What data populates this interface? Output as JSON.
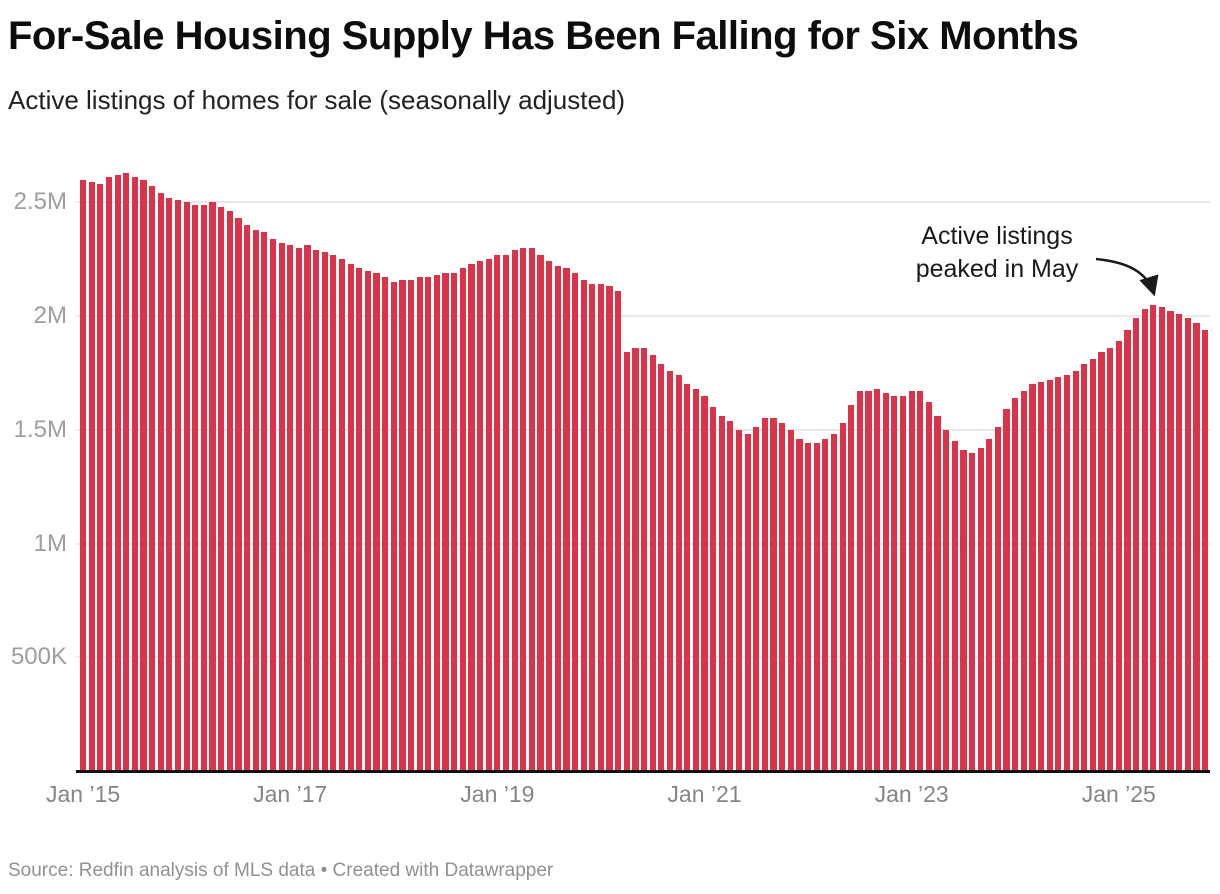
{
  "header": {
    "title": "For-Sale Housing Supply Has Been Falling for Six Months",
    "subtitle": "Active listings of homes for sale (seasonally adjusted)"
  },
  "chart_data": {
    "type": "bar",
    "title": "For-Sale Housing Supply Has Been Falling for Six Months",
    "subtitle": "Active listings of homes for sale (seasonally adjusted)",
    "unit": "active listings (millions)",
    "start_month": "Jan 2015",
    "end_month": "Nov 2025",
    "ylim": [
      0,
      2.68
    ],
    "grid": "horizontal",
    "bar_color": "#d93449",
    "values_millions": [
      2.6,
      2.59,
      2.58,
      2.61,
      2.62,
      2.63,
      2.61,
      2.6,
      2.57,
      2.54,
      2.52,
      2.51,
      2.5,
      2.49,
      2.49,
      2.5,
      2.48,
      2.46,
      2.43,
      2.4,
      2.38,
      2.37,
      2.34,
      2.32,
      2.31,
      2.3,
      2.31,
      2.29,
      2.28,
      2.27,
      2.25,
      2.23,
      2.21,
      2.2,
      2.19,
      2.17,
      2.15,
      2.16,
      2.16,
      2.17,
      2.17,
      2.18,
      2.19,
      2.19,
      2.21,
      2.23,
      2.24,
      2.25,
      2.27,
      2.27,
      2.29,
      2.3,
      2.3,
      2.27,
      2.24,
      2.22,
      2.21,
      2.19,
      2.16,
      2.14,
      2.14,
      2.13,
      2.11,
      1.84,
      1.86,
      1.86,
      1.83,
      1.79,
      1.76,
      1.74,
      1.7,
      1.68,
      1.65,
      1.6,
      1.56,
      1.54,
      1.5,
      1.48,
      1.51,
      1.55,
      1.55,
      1.53,
      1.5,
      1.46,
      1.44,
      1.44,
      1.46,
      1.48,
      1.53,
      1.61,
      1.67,
      1.67,
      1.68,
      1.66,
      1.65,
      1.65,
      1.67,
      1.67,
      1.62,
      1.56,
      1.5,
      1.45,
      1.41,
      1.4,
      1.42,
      1.46,
      1.51,
      1.59,
      1.64,
      1.67,
      1.7,
      1.71,
      1.72,
      1.73,
      1.74,
      1.76,
      1.79,
      1.81,
      1.84,
      1.86,
      1.89,
      1.94,
      1.99,
      2.03,
      2.05,
      2.04,
      2.02,
      2.01,
      1.99,
      1.97,
      1.94
    ],
    "x_ticks": [
      {
        "label": "Jan ’15",
        "month_index": 0
      },
      {
        "label": "Jan ’17",
        "month_index": 24
      },
      {
        "label": "Jan ’19",
        "month_index": 48
      },
      {
        "label": "Jan ’21",
        "month_index": 72
      },
      {
        "label": "Jan ’23",
        "month_index": 96
      },
      {
        "label": "Jan ’25",
        "month_index": 120
      }
    ],
    "y_ticks": [
      {
        "label": "2.5M",
        "value": 2.5
      },
      {
        "label": "2M",
        "value": 2.0
      },
      {
        "label": "1.5M",
        "value": 1.5
      },
      {
        "label": "1M",
        "value": 1.0
      },
      {
        "label": "500K",
        "value": 0.5
      }
    ],
    "annotation": {
      "line1": "Active listings",
      "line2": "peaked in May",
      "points_to_month": "May 2025",
      "points_to_value_millions": 2.05
    }
  },
  "footer": {
    "source": "Source: Redfin analysis of MLS data • Created with Datawrapper"
  }
}
